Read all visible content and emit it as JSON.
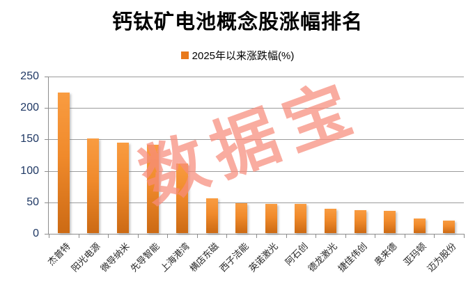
{
  "title": "钙钛矿电池概念股涨幅排名",
  "legend": {
    "label": "2025年以来涨跌幅(%)",
    "swatch_color": "#E8791B"
  },
  "watermark": {
    "text": "数据宝",
    "color": "rgba(246,140,124,0.72)"
  },
  "colors": {
    "bar_top": "#F99C41",
    "bar_bottom": "#CC6A14",
    "grid": "#9B9B9B",
    "axis": "#8C8C8C",
    "ytick_label": "#1F3864",
    "xtick_label": "#262626",
    "title": "#000000"
  },
  "chart_data": {
    "type": "bar",
    "title": "钙钛矿电池概念股涨幅排名",
    "legend": [
      "2025年以来涨跌幅(%)"
    ],
    "legend_position": "top",
    "categories": [
      "杰普特",
      "阳光电源",
      "微导纳米",
      "先导智能",
      "上海港湾",
      "横店东磁",
      "西子洁能",
      "英诺激光",
      "阿石创",
      "德龙激光",
      "捷佳伟创",
      "奥来德",
      "亚玛顿",
      "迈为股份"
    ],
    "values": [
      224,
      151,
      144,
      141,
      111,
      55,
      48,
      46,
      46,
      39,
      36,
      35,
      23,
      20
    ],
    "xlabel": "",
    "ylabel": "",
    "ylim": [
      0,
      250
    ],
    "yticks": [
      0,
      50,
      100,
      150,
      200,
      250
    ],
    "grid": true
  }
}
